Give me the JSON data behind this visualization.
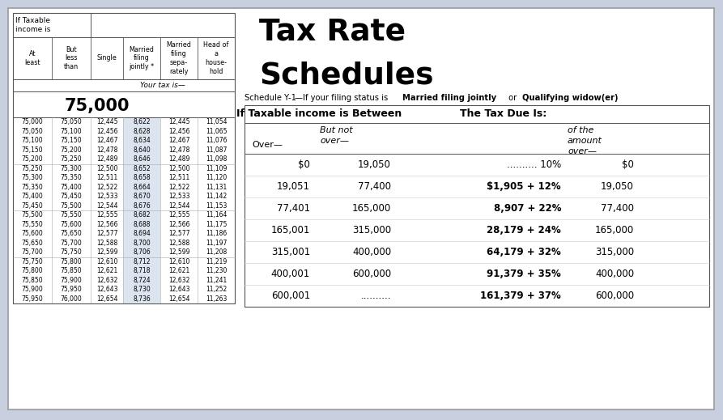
{
  "title_line1": "Tax Rate",
  "title_line2": "Schedules",
  "bg_color": "#c8d0e0",
  "white": "#ffffff",
  "black": "#000000",
  "schedule_subtitle_plain": "Schedule Y-1—If your filing status is ",
  "schedule_subtitle_bold1": "Married filing jointly",
  "schedule_subtitle_mid": " or ",
  "schedule_subtitle_bold2": "Qualifying widow(er)",
  "left_header1_text": "If Taxable\nincome is",
  "left_header2_labels": [
    "At\nleast",
    "But\nless\nthan",
    "Single",
    "Married\nfiling\njointly *",
    "Married\nfiling\nsepa-\nrately",
    "Head of\na\nhouse-\nhold"
  ],
  "your_tax_text": "Your tax is—",
  "highlight_value": "75,000",
  "left_col_widths": [
    48,
    48,
    40,
    46,
    46,
    46
  ],
  "left_rows": [
    [
      "75,000",
      "75,050",
      "12,445",
      "8,622",
      "12,445",
      "11,054"
    ],
    [
      "75,050",
      "75,100",
      "12,456",
      "8,628",
      "12,456",
      "11,065"
    ],
    [
      "75,100",
      "75,150",
      "12,467",
      "8,634",
      "12,467",
      "11,076"
    ],
    [
      "75,150",
      "75,200",
      "12,478",
      "8,640",
      "12,478",
      "11,087"
    ],
    [
      "75,200",
      "75,250",
      "12,489",
      "8,646",
      "12,489",
      "11,098"
    ],
    [
      "75,250",
      "75,300",
      "12,500",
      "8,652",
      "12,500",
      "11,109"
    ],
    [
      "75,300",
      "75,350",
      "12,511",
      "8,658",
      "12,511",
      "11,120"
    ],
    [
      "75,350",
      "75,400",
      "12,522",
      "8,664",
      "12,522",
      "11,131"
    ],
    [
      "75,400",
      "75,450",
      "12,533",
      "8,670",
      "12,533",
      "11,142"
    ],
    [
      "75,450",
      "75,500",
      "12,544",
      "8,676",
      "12,544",
      "11,153"
    ],
    [
      "75,500",
      "75,550",
      "12,555",
      "8,682",
      "12,555",
      "11,164"
    ],
    [
      "75,550",
      "75,600",
      "12,566",
      "8,688",
      "12,566",
      "11,175"
    ],
    [
      "75,600",
      "75,650",
      "12,577",
      "8,694",
      "12,577",
      "11,186"
    ],
    [
      "75,650",
      "75,700",
      "12,588",
      "8,700",
      "12,588",
      "11,197"
    ],
    [
      "75,700",
      "75,750",
      "12,599",
      "8,706",
      "12,599",
      "11,208"
    ],
    [
      "75,750",
      "75,800",
      "12,610",
      "8,712",
      "12,610",
      "11,219"
    ],
    [
      "75,800",
      "75,850",
      "12,621",
      "8,718",
      "12,621",
      "11,230"
    ],
    [
      "75,850",
      "75,900",
      "12,632",
      "8,724",
      "12,632",
      "11,241"
    ],
    [
      "75,900",
      "75,950",
      "12,643",
      "8,730",
      "12,643",
      "11,252"
    ],
    [
      "75,950",
      "76,000",
      "12,654",
      "8,736",
      "12,654",
      "11,263"
    ]
  ],
  "right_col1_header": "If Taxable income is Between",
  "right_col2_header": "The Tax Due Is:",
  "right_subhdr_over": "Over—",
  "right_subhdr_butnot": "But not\nover—",
  "right_subhdr_ofamount": "of the\namount\nover—",
  "right_rows": [
    [
      "$0",
      "19,050",
      ".......... 10%",
      "$0"
    ],
    [
      "19,051",
      "77,400",
      "$1,905 + 12%",
      "19,050"
    ],
    [
      "77,401",
      "165,000",
      "8,907 + 22%",
      "77,400"
    ],
    [
      "165,001",
      "315,000",
      "28,179 + 24%",
      "165,000"
    ],
    [
      "315,001",
      "400,000",
      "64,179 + 32%",
      "315,000"
    ],
    [
      "400,001",
      "600,000",
      "91,379 + 35%",
      "400,000"
    ],
    [
      "600,001",
      "..........",
      "161,379 + 37%",
      "600,000"
    ]
  ],
  "right_rows_bold": [
    false,
    true,
    true,
    true,
    true,
    true,
    true
  ]
}
